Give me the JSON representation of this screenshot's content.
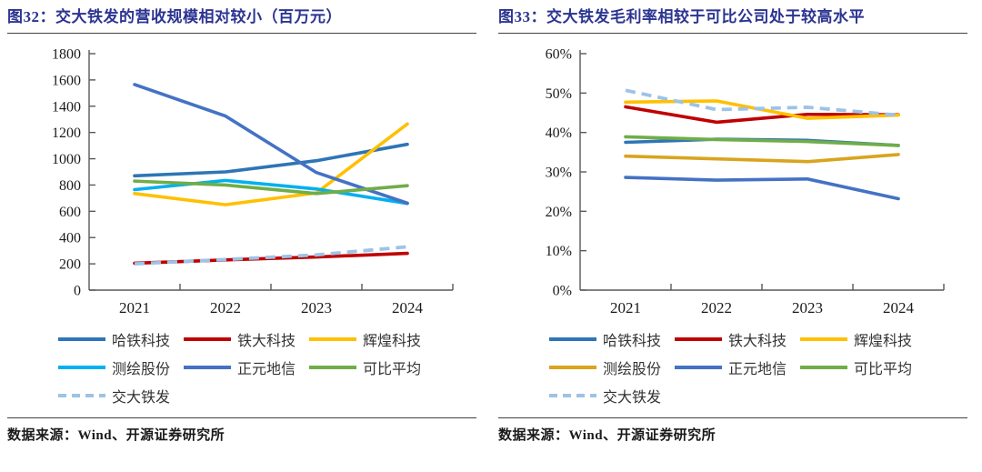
{
  "theme": {
    "title_color": "#2B3491",
    "axis_color": "#595959",
    "tick_label_color": "#1a1a1a",
    "rule_color": "#404040",
    "source_color": "#1a1a1a"
  },
  "chart_data": [
    {
      "type": "line",
      "title": "图32：交大铁发的营收规模相对较小（百万元）",
      "categories": [
        "2021",
        "2022",
        "2023",
        "2024"
      ],
      "series": [
        {
          "name": "哈铁科技",
          "color": "#2E75B6",
          "dashed": false,
          "values": [
            870,
            900,
            985,
            1110
          ]
        },
        {
          "name": "铁大科技",
          "color": "#C00000",
          "dashed": false,
          "values": [
            205,
            230,
            252,
            280
          ]
        },
        {
          "name": "辉煌科技",
          "color": "#FFC000",
          "dashed": false,
          "values": [
            735,
            650,
            740,
            1265
          ]
        },
        {
          "name": "测绘股份",
          "color": "#00B0F0",
          "dashed": false,
          "values": [
            765,
            835,
            770,
            660
          ]
        },
        {
          "name": "正元地信",
          "color": "#4472C4",
          "dashed": false,
          "values": [
            1565,
            1325,
            895,
            662
          ]
        },
        {
          "name": "可比平均",
          "color": "#70AD47",
          "dashed": false,
          "values": [
            830,
            800,
            735,
            795
          ]
        },
        {
          "name": "交大铁发",
          "color": "#9DC3E6",
          "dashed": true,
          "values": [
            200,
            233,
            268,
            330
          ]
        }
      ],
      "ylim": [
        0,
        1800
      ],
      "ytick_step": 200,
      "ytick_suffix": "",
      "grid": false,
      "legend_position": "bottom",
      "source": "数据来源：Wind、开源证券研究所"
    },
    {
      "type": "line",
      "title": "图33：交大铁发毛利率相较于可比公司处于较高水平",
      "categories": [
        "2021",
        "2022",
        "2023",
        "2024"
      ],
      "series": [
        {
          "name": "哈铁科技",
          "color": "#2E75B6",
          "dashed": false,
          "values": [
            37.5,
            38.3,
            38.0,
            36.7
          ]
        },
        {
          "name": "铁大科技",
          "color": "#C00000",
          "dashed": false,
          "values": [
            46.5,
            42.6,
            44.6,
            44.5
          ]
        },
        {
          "name": "辉煌科技",
          "color": "#FFC000",
          "dashed": false,
          "values": [
            47.7,
            48.0,
            43.6,
            44.4
          ]
        },
        {
          "name": "测绘股份",
          "color": "#D9A41E",
          "dashed": false,
          "values": [
            34.0,
            33.3,
            32.6,
            34.4
          ]
        },
        {
          "name": "正元地信",
          "color": "#4472C4",
          "dashed": false,
          "values": [
            28.6,
            27.9,
            28.2,
            23.2
          ]
        },
        {
          "name": "可比平均",
          "color": "#70AD47",
          "dashed": false,
          "values": [
            38.9,
            38.2,
            37.7,
            36.7
          ]
        },
        {
          "name": "交大铁发",
          "color": "#9DC3E6",
          "dashed": true,
          "values": [
            50.7,
            45.8,
            46.4,
            44.4
          ]
        }
      ],
      "ylim": [
        0,
        60
      ],
      "ytick_step": 10,
      "ytick_suffix": "%",
      "grid": false,
      "legend_position": "bottom",
      "source": "数据来源：Wind、开源证券研究所"
    }
  ]
}
